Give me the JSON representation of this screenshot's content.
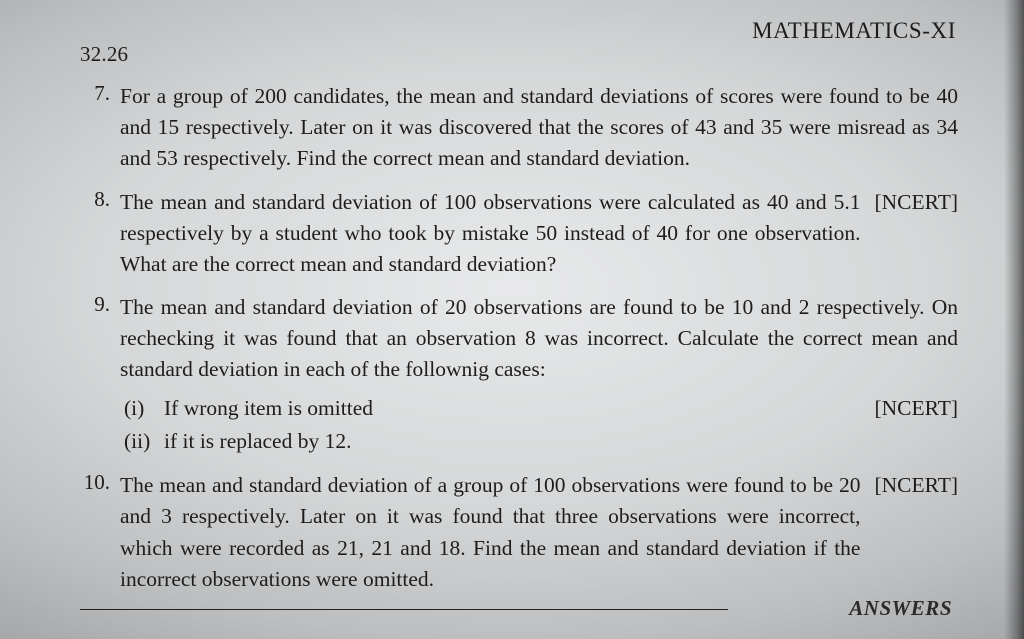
{
  "header": {
    "section_number": "32.26",
    "book_label": "MATHEMATICS-XI"
  },
  "questions": [
    {
      "num": "7.",
      "text": "For a group of 200 candidates, the mean and standard deviations of scores were found to be 40 and 15 respectively. Later on it was discovered that the scores of 43 and 35 were misread as 34 and 53 respectively. Find the correct mean and standard deviation.",
      "tag": "",
      "subs": []
    },
    {
      "num": "8.",
      "text": "The mean and standard deviation of 100 observations were calculated as 40 and 5.1 respectively by a student who took by mistake 50 instead of 40 for one observation. What are the correct mean and standard deviation?",
      "tag": "[NCERT]",
      "subs": []
    },
    {
      "num": "9.",
      "text": "The mean and standard deviation of 20 observations are found to be 10 and 2 respectively. On rechecking it was found that an observation 8 was incorrect. Calculate the correct mean and standard deviation in each of the follownig cases:",
      "tag": "",
      "subs": [
        {
          "num": "(i)",
          "text": "If wrong item is omitted",
          "tag": "[NCERT]"
        },
        {
          "num": "(ii)",
          "text": "if it is replaced by 12.",
          "tag": ""
        }
      ]
    },
    {
      "num": "10.",
      "text": "The mean and standard deviation of a group of 100 observations were found to be 20 and 3 respectively. Later on it was found that three observations were incorrect, which were recorded as 21, 21 and 18. Find the mean and standard deviation if the incorrect observations were omitted.",
      "tag": "[NCERT]",
      "subs": []
    }
  ],
  "footer": {
    "answers_label": "ANSWERS"
  }
}
